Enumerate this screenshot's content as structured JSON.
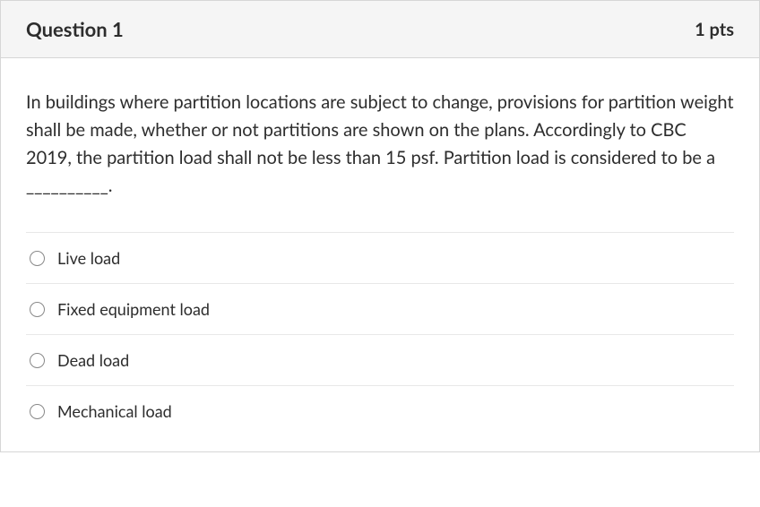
{
  "question": {
    "title": "Question 1",
    "points": "1 pts",
    "text": "In buildings where partition locations are subject to change, provisions for partition weight shall be made, whether or not partitions are shown on the plans. Accordingly to CBC 2019, the partition load shall not be less than 15 psf. Partition load is considered to be a __________.",
    "options": [
      {
        "label": "Live load"
      },
      {
        "label": "Fixed equipment load"
      },
      {
        "label": "Dead load"
      },
      {
        "label": "Mechanical load"
      }
    ]
  },
  "styling": {
    "card_border_color": "#d6d6d6",
    "header_bg": "#f5f5f5",
    "text_color": "#2d2d2d",
    "option_divider_color": "#e8e8e8",
    "radio_border_color": "#888888",
    "body_bg": "#ffffff",
    "title_fontsize": 22,
    "points_fontsize": 20,
    "body_fontsize": 20,
    "option_fontsize": 18
  }
}
